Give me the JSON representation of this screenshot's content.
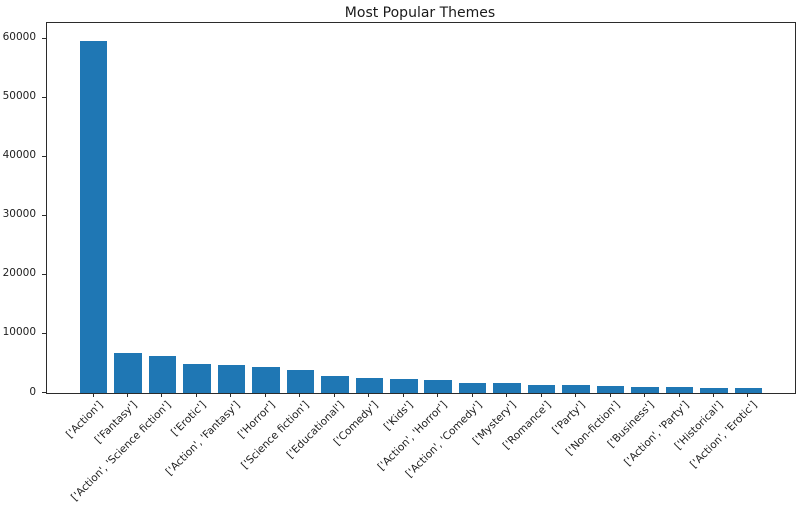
{
  "figure": {
    "background": "#ffffff"
  },
  "colors": {
    "bar": "#1f77b4",
    "axis": "#2b2b2b",
    "text": "#1f1f1f"
  },
  "chart_data": {
    "type": "bar",
    "title": "Most Popular Themes",
    "xlabel": "",
    "ylabel": "",
    "categories": [
      "['Action']",
      "['Fantasy']",
      "['Action', 'Science fiction']",
      "['Erotic']",
      "['Action', 'Fantasy']",
      "['Horror']",
      "['Science fiction']",
      "['Educational']",
      "['Comedy']",
      "['Kids']",
      "['Action', 'Horror']",
      "['Action', 'Comedy']",
      "['Mystery']",
      "['Romance']",
      "['Party']",
      "['Non-fiction']",
      "['Business']",
      "['Action', 'Party']",
      "['Historical']",
      "['Action', 'Erotic']"
    ],
    "values": [
      59700,
      6700,
      6200,
      4900,
      4700,
      4400,
      3900,
      2800,
      2500,
      2400,
      2150,
      1750,
      1700,
      1400,
      1350,
      1150,
      1100,
      980,
      930,
      900
    ],
    "yticks": [
      0,
      10000,
      20000,
      30000,
      40000,
      50000,
      60000
    ],
    "ylim": [
      0,
      62700
    ],
    "bar_width_ratio": 0.8,
    "x_tick_rotation": 45,
    "grid": false,
    "legend": null
  }
}
